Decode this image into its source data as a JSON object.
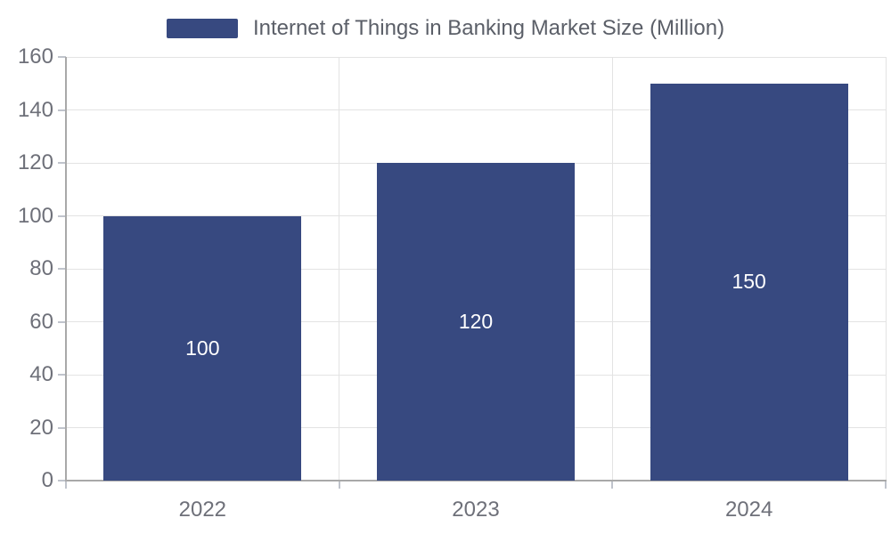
{
  "legend": {
    "label": "Internet of Things in Banking Market Size (Million)"
  },
  "chart_data": {
    "type": "bar",
    "title": "Internet of Things in Banking Market Size (Million)",
    "categories": [
      "2022",
      "2023",
      "2024"
    ],
    "values": [
      100,
      120,
      150
    ],
    "series": [
      {
        "name": "Internet of Things in Banking Market Size (Million)",
        "values": [
          100,
          120,
          150
        ]
      }
    ],
    "value_labels": [
      100,
      120,
      150
    ],
    "value_label_position": "inside-center",
    "xlabel": "",
    "ylabel": "",
    "ylim": [
      0,
      160
    ],
    "ytick_step": 20,
    "yticks": [
      0,
      20,
      40,
      60,
      80,
      100,
      120,
      140,
      160
    ],
    "grid": true,
    "legend_position": "top-center",
    "colors": {
      "bar": "#374980",
      "value_label": "#FFFFFF",
      "axis_label": "#6E7079",
      "legend_text": "#5B5F68",
      "grid_line": "#E3E3E3",
      "axis_line": "#A9A9A9",
      "tick": "#C0C4CC",
      "background": "#FFFFFF"
    }
  }
}
